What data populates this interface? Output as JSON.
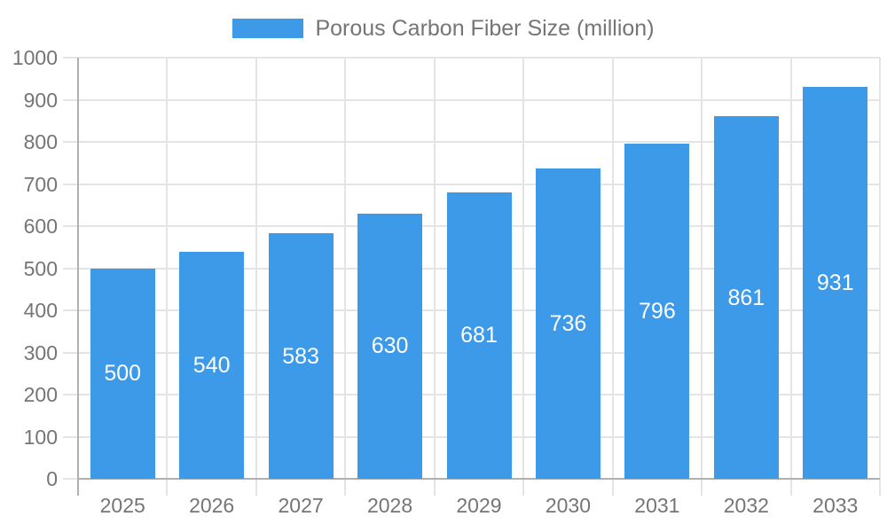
{
  "legend": {
    "label": "Porous Carbon Fiber Size (million)"
  },
  "colors": {
    "bar": "#3d9ae9",
    "grid": "#e4e4e4",
    "axis": "#b0b0b0",
    "text": "#757575",
    "value_text": "#ffffff",
    "background": "#ffffff"
  },
  "chart_data": {
    "type": "bar",
    "title": "",
    "xlabel": "",
    "ylabel": "",
    "categories": [
      "2025",
      "2026",
      "2027",
      "2028",
      "2029",
      "2030",
      "2031",
      "2032",
      "2033"
    ],
    "series": [
      {
        "name": "Porous Carbon Fiber Size (million)",
        "values": [
          500,
          540,
          583,
          630,
          681,
          736,
          796,
          861,
          931
        ]
      }
    ],
    "value_labels": "inside-center",
    "ylim": [
      0,
      1000
    ],
    "ytick_step": 100,
    "grid": true,
    "legend_position": "top-center"
  }
}
